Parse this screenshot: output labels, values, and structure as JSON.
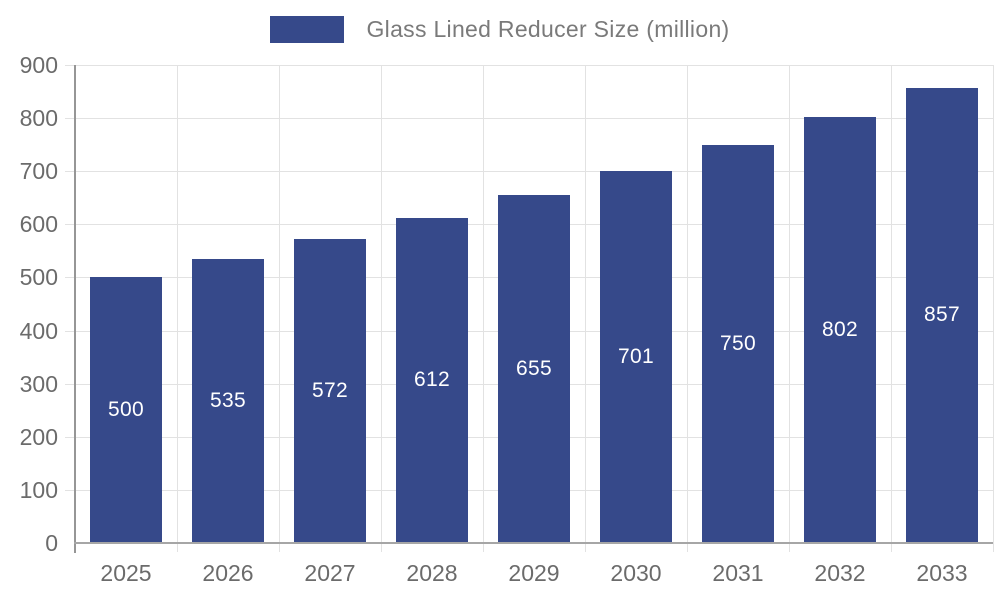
{
  "legend": {
    "label": "Glass Lined Reducer Size (million)"
  },
  "chart_data": {
    "type": "bar",
    "title": "Glass Lined Reducer Size (million)",
    "categories": [
      "2025",
      "2026",
      "2027",
      "2028",
      "2029",
      "2030",
      "2031",
      "2032",
      "2033"
    ],
    "values": [
      500,
      535,
      572,
      612,
      655,
      701,
      750,
      802,
      857
    ],
    "xlabel": "",
    "ylabel": "",
    "ylim": [
      0,
      900
    ],
    "ytick_interval": 100,
    "yticks": [
      0,
      100,
      200,
      300,
      400,
      500,
      600,
      700,
      800,
      900
    ],
    "grid": true,
    "legend_position": "top-center",
    "value_labels": "inside-center",
    "colors": {
      "bar": "#36498A",
      "grid": "#e2e2e2",
      "axis": "#a0a0a0",
      "tick_label": "#6b6b6b",
      "legend_text": "#7a7a7a",
      "value_label": "#ffffff"
    }
  }
}
